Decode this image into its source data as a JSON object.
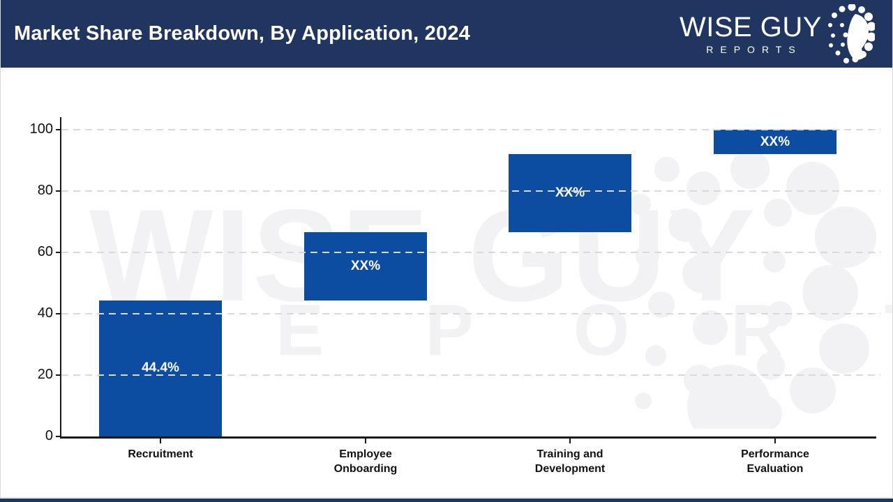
{
  "header": {
    "title": "Market Share Breakdown, By Application, 2024",
    "logo": {
      "name": "WISE GUY",
      "sub": "REPORTS"
    }
  },
  "colors": {
    "header_bg": "#20355f",
    "bar": "#0d4da1",
    "grid": "#d9d9d9",
    "axis": "#1a1a1a",
    "bar_label": "#ffffff",
    "watermark": "#f2f2f4",
    "footer_bar": "#20355f"
  },
  "watermark": {
    "line1": "WISE GUY",
    "line2": "R E P O R T S"
  },
  "chart_data": {
    "type": "bar",
    "variant": "waterfall",
    "title": "Market Share Breakdown, By Application, 2024",
    "categories": [
      "Recruitment",
      "Employee Onboarding",
      "Training and Development",
      "Performance Evaluation"
    ],
    "bars": [
      {
        "category": "Recruitment",
        "label": "44.4%",
        "start": 0,
        "end": 44.4
      },
      {
        "category": "Employee Onboarding",
        "label": "XX%",
        "start": 44.4,
        "end": 66.7
      },
      {
        "category": "Training and Development",
        "label": "XX%",
        "start": 66.7,
        "end": 92.0
      },
      {
        "category": "Performance Evaluation",
        "label": "XX%",
        "start": 92.0,
        "end": 100.0
      }
    ],
    "category_lines": [
      [
        "Recruitment"
      ],
      [
        "Employee",
        "Onboarding"
      ],
      [
        "Training and",
        "Development"
      ],
      [
        "Performance",
        "Evaluation"
      ]
    ],
    "yticks": [
      0,
      20,
      40,
      60,
      80,
      100
    ],
    "ylim": [
      0,
      104
    ],
    "xlabel": "",
    "ylabel": "",
    "grid": "horizontal-dashed",
    "legend": "none"
  }
}
